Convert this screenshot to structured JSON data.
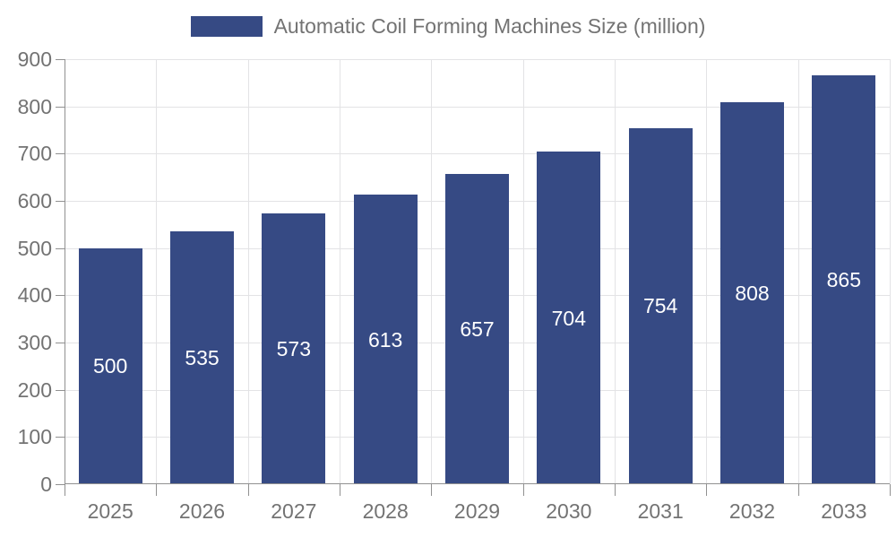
{
  "chart_data": {
    "type": "bar",
    "title": "Automatic Coil Forming Machines Size (million)",
    "categories": [
      "2025",
      "2026",
      "2027",
      "2028",
      "2029",
      "2030",
      "2031",
      "2032",
      "2033"
    ],
    "values": [
      500,
      535,
      573,
      613,
      657,
      704,
      754,
      808,
      865
    ],
    "xlabel": "",
    "ylabel": "",
    "ylim": [
      0,
      900
    ],
    "ytick_step": 100,
    "grid": true,
    "legend_position": "top",
    "value_labels": "inside-center",
    "colors": {
      "bar": "#364a84",
      "value_label": "#ffffff",
      "axis_line": "#919191",
      "gridline": "#e3e3e5",
      "tick_text": "#737373",
      "background": "#ffffff"
    }
  }
}
